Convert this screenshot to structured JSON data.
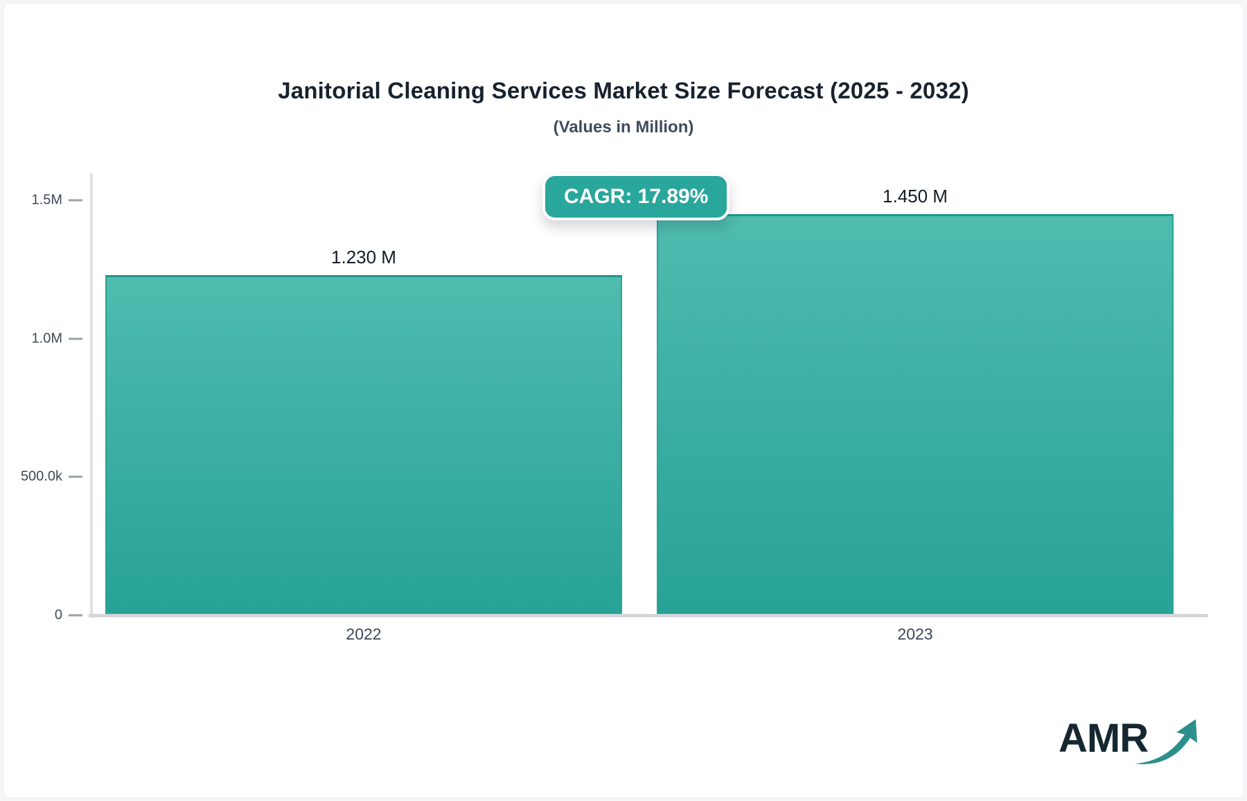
{
  "header": {
    "title": "Janitorial Cleaning Services Market Size Forecast (2025 - 2032)",
    "subtitle": "(Values in Million)"
  },
  "badge": {
    "label": "CAGR: 17.89%"
  },
  "logo": {
    "text": "AMR"
  },
  "colors": {
    "bar_top": "#50bcb0",
    "bar_bottom": "#28a296",
    "bar_edge": "#1f998c",
    "badge_bg": "#2aa79c",
    "axis_line": "#d2d6db",
    "tick": "#99a1ab",
    "title_text": "#18222e",
    "subtitle_text": "#3e4b5c",
    "logo_text": "#152731",
    "logo_arrow": "#2c8f8c"
  },
  "chart_data": {
    "type": "bar",
    "title": "Janitorial Cleaning Services Market Size Forecast (2025 - 2032)",
    "subtitle": "(Values in Million)",
    "categories": [
      "2022",
      "2023"
    ],
    "values": [
      1230000,
      1450000
    ],
    "value_labels": [
      "1.230 M",
      "1.450 M"
    ],
    "annotation": "CAGR: 17.89%",
    "xlabel": "",
    "ylabel": "",
    "ylim": [
      0,
      1500000
    ],
    "yticks": [
      {
        "value": 0,
        "label": "0"
      },
      {
        "value": 500000,
        "label": "500.0k"
      },
      {
        "value": 1000000,
        "label": "1.0M"
      },
      {
        "value": 1500000,
        "label": "1.5M"
      }
    ],
    "grid": false,
    "legend": false
  }
}
